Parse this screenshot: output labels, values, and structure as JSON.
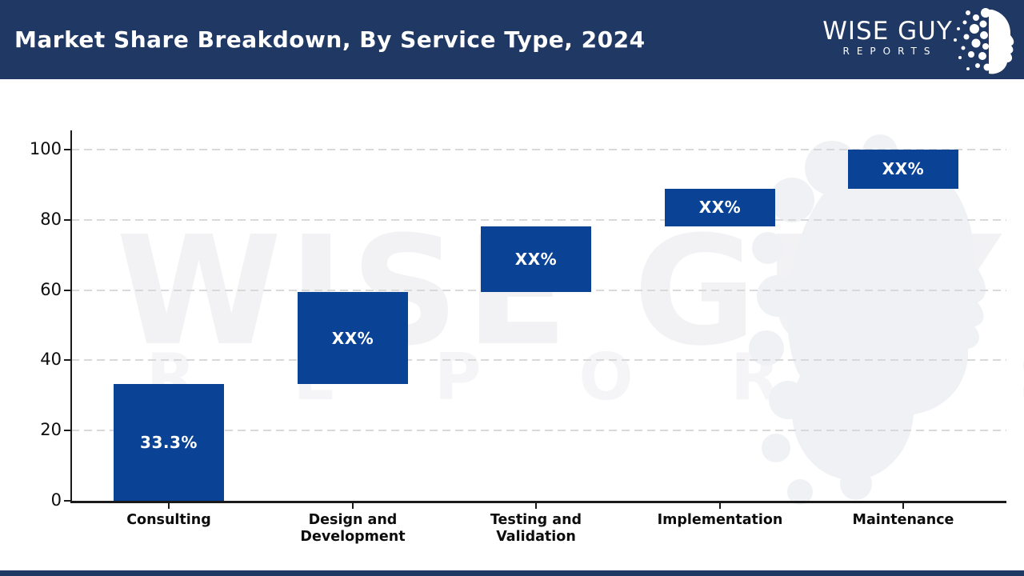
{
  "header": {
    "title": "Market Share Breakdown, By Service Type, 2024",
    "bg_color": "#203864",
    "logo": {
      "line1": "WISE GUY",
      "line2": "REPORTS"
    }
  },
  "watermark": {
    "line1": "WISE GUY",
    "line2": "R E P O R T S"
  },
  "chart_data": {
    "type": "bar",
    "subtype": "floating-segment-waterfall",
    "title": "Market Share Breakdown, By Service Type, 2024",
    "categories": [
      [
        "Consulting"
      ],
      [
        "Design and",
        "Development"
      ],
      [
        "Testing and",
        "Validation"
      ],
      [
        "Implementation"
      ],
      [
        "Maintenance"
      ]
    ],
    "series": [
      {
        "name": "Consulting",
        "start": 0,
        "end": 33.3,
        "label": "33.3%"
      },
      {
        "name": "Design and Development",
        "start": 33.3,
        "end": 59.4,
        "label": "XX%"
      },
      {
        "name": "Testing and Validation",
        "start": 59.4,
        "end": 78.2,
        "label": "XX%"
      },
      {
        "name": "Implementation",
        "start": 78.2,
        "end": 88.9,
        "label": "XX%"
      },
      {
        "name": "Maintenance",
        "start": 88.9,
        "end": 100,
        "label": "XX%"
      }
    ],
    "yticks": [
      0,
      20,
      40,
      60,
      80,
      100
    ],
    "ylim": [
      0,
      105
    ],
    "xlabel": "",
    "ylabel": "",
    "grid": "horizontal-dashed",
    "legend": "none",
    "bar_color": "#0a4296",
    "bar_label_color": "#ffffff",
    "gridline_color": "#d9d9d9",
    "axis_color": "#1a1a1a"
  }
}
